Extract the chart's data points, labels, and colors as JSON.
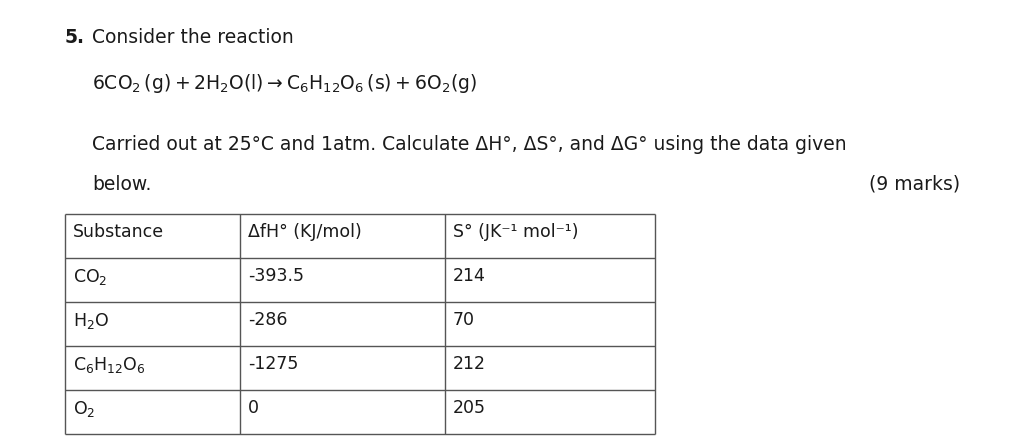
{
  "background_color": "#ffffff",
  "fig_width": 10.24,
  "fig_height": 4.39,
  "dpi": 100,
  "text_color": "#1a1a1a",
  "line_color": "#555555",
  "question_number": "5.",
  "question_text": "Consider the reaction",
  "description_line1": "Carried out at 25°C and 1atm. Calculate ΔH°, ΔS°, and ΔG° using the data given",
  "description_line2": "below.",
  "marks": "(9 marks)",
  "table_col0_header": "Substance",
  "table_col1_header": "ΔfH° (KJ/mol)",
  "table_col2_header": "S° (JK⁻¹ mol⁻¹)",
  "table_substances": [
    "$\\mathrm{CO_2}$",
    "$\\mathrm{H_2O}$",
    "$\\mathrm{C_6H_{12}O_6}$",
    "$\\mathrm{O_2}$"
  ],
  "table_dH": [
    "-393.5",
    "-286",
    "-1275",
    "0"
  ],
  "table_S": [
    "214",
    "70",
    "212",
    "205"
  ],
  "font_size": 13.5,
  "font_size_table": 12.5,
  "reaction_mathtext": "$\\mathrm{6CO_2\\,(g) + 2H_2O(l) \\rightarrow C_6H_{12}O_6\\,(s) + 6O_2(g)}$"
}
